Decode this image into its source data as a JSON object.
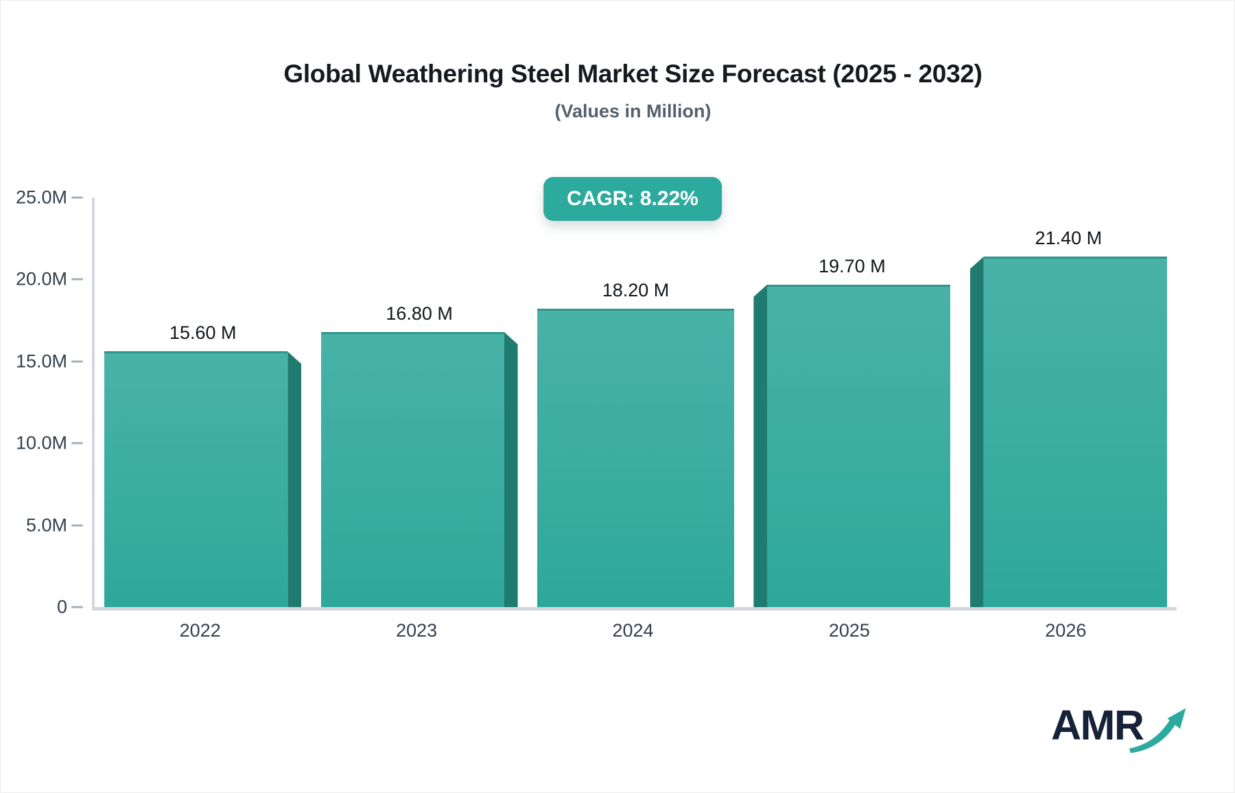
{
  "chart_data": {
    "type": "bar",
    "title": "Global Weathering Steel Market Size Forecast (2025 - 2032)",
    "subtitle": "(Values in Million)",
    "cagr_badge": "CAGR: 8.22%",
    "categories": [
      "2022",
      "2023",
      "2024",
      "2025",
      "2026"
    ],
    "values": [
      15.6,
      16.8,
      18.2,
      19.7,
      21.4
    ],
    "value_labels": [
      "15.60 M",
      "16.80 M",
      "18.20 M",
      "19.70 M",
      "21.40 M"
    ],
    "ylim": [
      0,
      25
    ],
    "ytick_labels": [
      "25.0M",
      "20.0M",
      "15.0M",
      "10.0M",
      "5.0M",
      "0"
    ],
    "grid": false,
    "legend": "none",
    "bar_3d_faces": [
      "right",
      "right",
      "none",
      "left",
      "left"
    ],
    "colors": {
      "bar_top": "#49b2a7",
      "bar_bottom": "#2ea89b",
      "bar_edge": "#2f948a",
      "bar_side_face": "#1f7b6f",
      "axis_line": "#d4d7de",
      "tick": "#a7b0b6",
      "axis_label": "#33404e",
      "value_label": "#10151a",
      "title": "#151a21",
      "subtitle": "#55606c",
      "badge_bg": "#2caa9d",
      "badge_text": "#ffffff",
      "logo_navy": "#152238",
      "logo_teal": "#2caa9d"
    }
  },
  "logo": {
    "text": "AMR"
  }
}
